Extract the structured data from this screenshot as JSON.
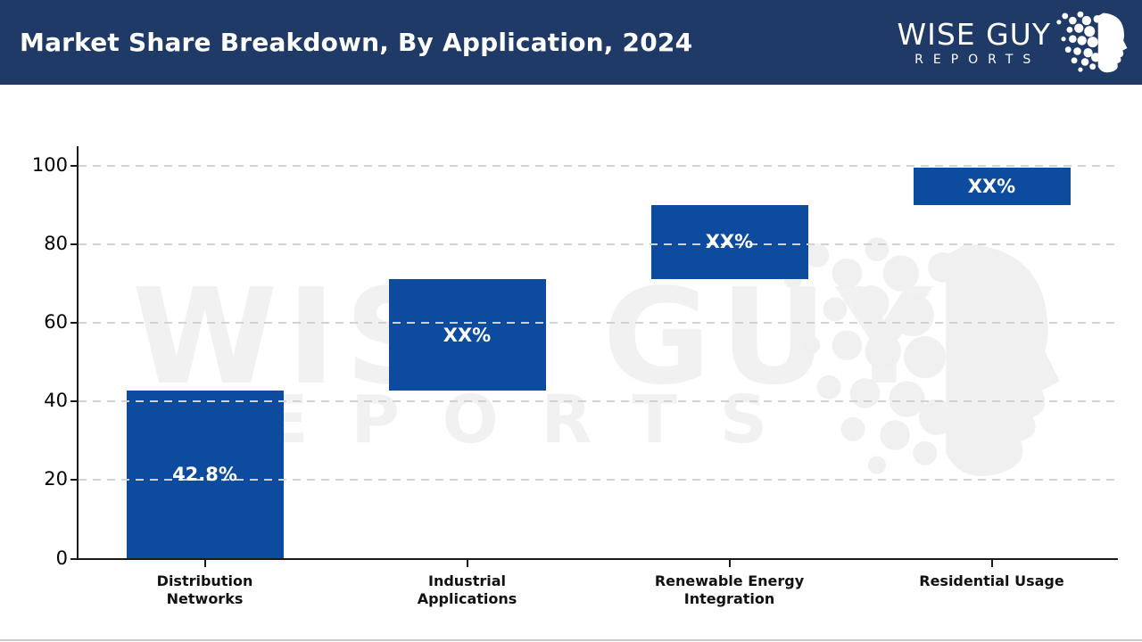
{
  "header": {
    "title": "Market Share Breakdown, By Application, 2024",
    "bg_color": "#1f3a67",
    "logo": {
      "wordmark": "WISE GUY",
      "subtext": "REPORTS"
    }
  },
  "watermark": {
    "wordmark": "WISE GUY",
    "subtext": "REPORTS"
  },
  "chart_data": {
    "type": "bar",
    "variant": "waterfall",
    "title": "Market Share Breakdown, By Application, 2024",
    "categories": [
      "Distribution Networks",
      "Industrial Applications",
      "Renewable Energy Integration",
      "Residential Usage"
    ],
    "category_labels": [
      "Distribution\nNetworks",
      "Industrial\nApplications",
      "Renewable Energy\nIntegration",
      "Residential Usage"
    ],
    "segments": [
      {
        "category": "Distribution Networks",
        "start": 0,
        "end": 42.8,
        "label": "42.8%"
      },
      {
        "category": "Industrial Applications",
        "start": 42.8,
        "end": 71,
        "label": "XX%"
      },
      {
        "category": "Renewable Energy Integration",
        "start": 71,
        "end": 90,
        "label": "XX%"
      },
      {
        "category": "Residential Usage",
        "start": 90,
        "end": 99.5,
        "label": "XX%"
      }
    ],
    "yticks": [
      0,
      20,
      40,
      60,
      80,
      100
    ],
    "ylim": [
      0,
      105
    ],
    "grid": "horizontal-dashed",
    "bar_color": "#0c4b9d",
    "axis_color": "#1a1a1a",
    "legend": "none"
  }
}
